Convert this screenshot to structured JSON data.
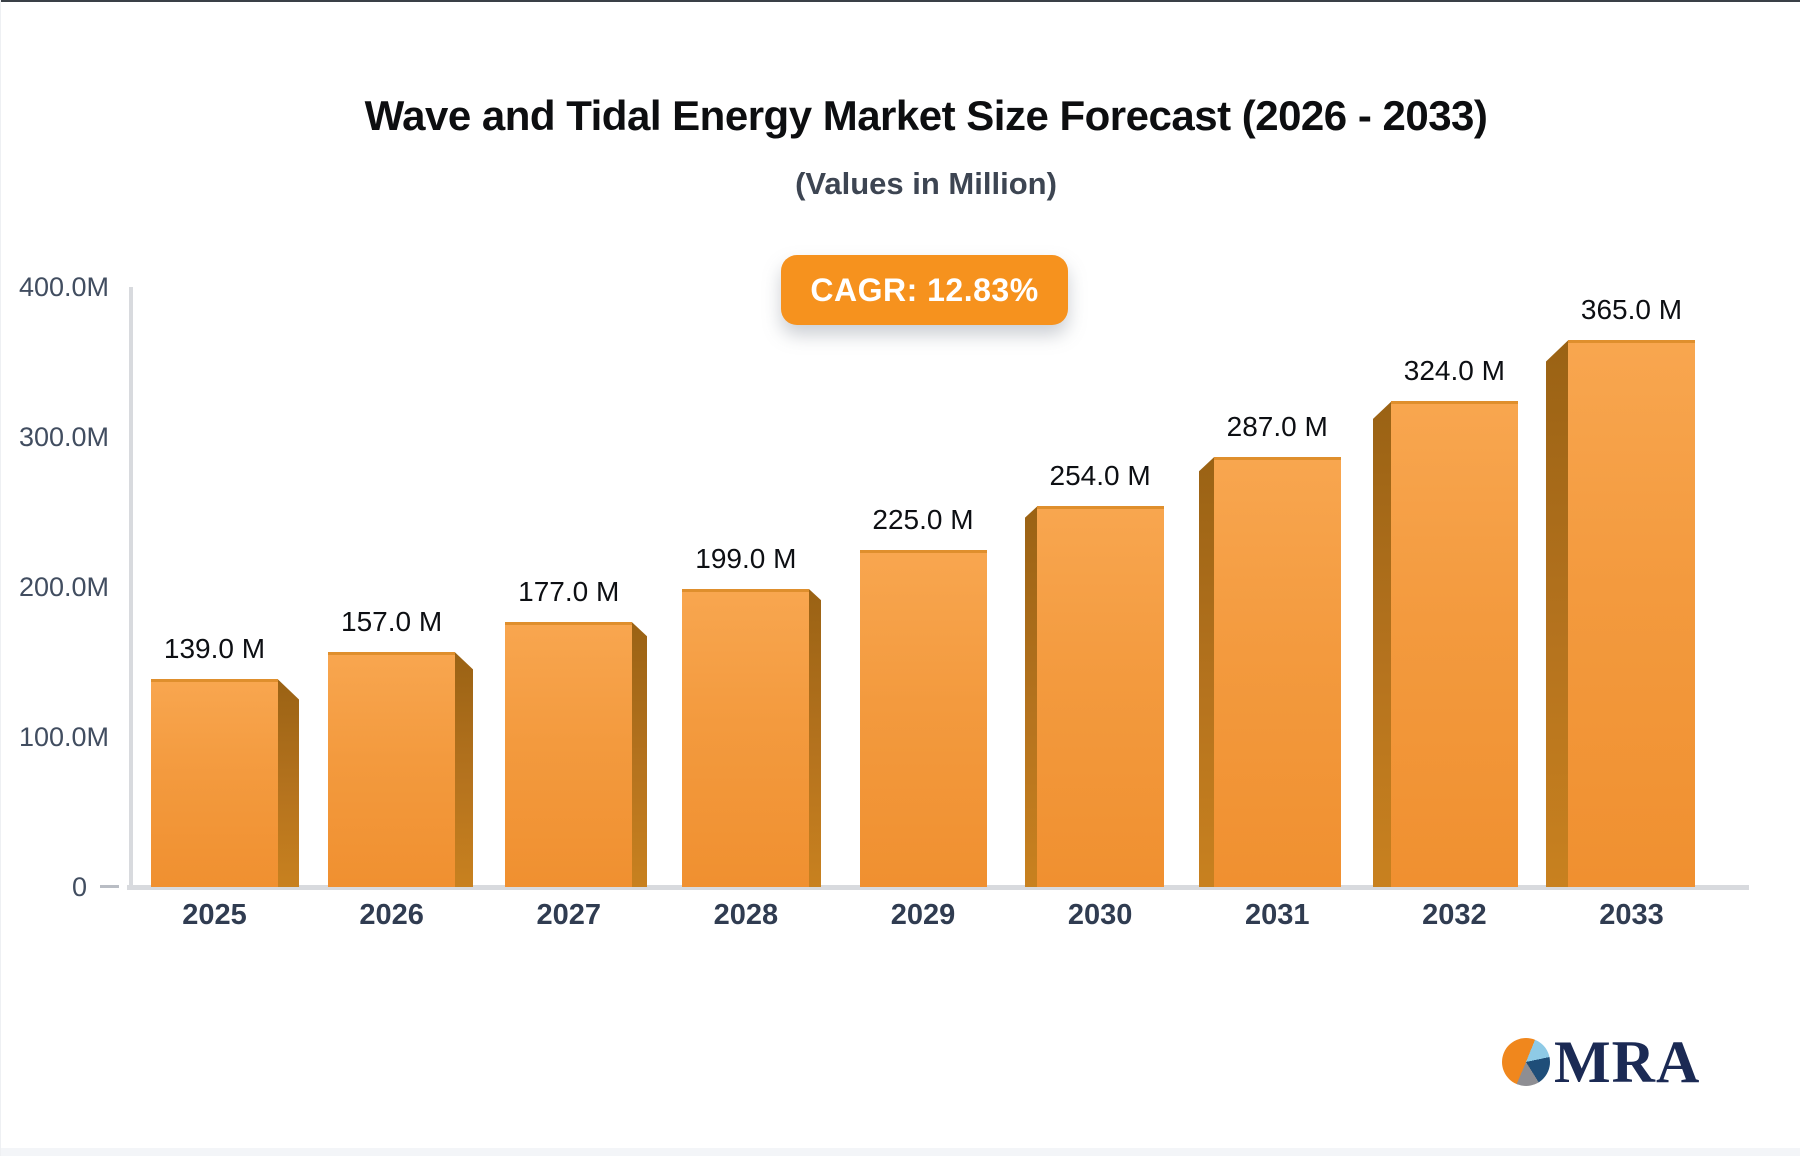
{
  "header": {
    "title": "Wave and Tidal Energy Market Size Forecast (2026 - 2033)",
    "subtitle": "(Values in Million)",
    "cagr_badge": "CAGR: 12.83%"
  },
  "chart_data": {
    "type": "bar",
    "title": "Wave and Tidal Energy Market Size Forecast (2026 - 2033)",
    "subtitle": "(Values in Million)",
    "unit": "Million",
    "cagr_percent": 12.83,
    "categories": [
      "2025",
      "2026",
      "2027",
      "2028",
      "2029",
      "2030",
      "2031",
      "2032",
      "2033"
    ],
    "values": [
      139,
      157,
      177,
      199,
      225,
      254,
      287,
      324,
      365
    ],
    "value_labels": [
      "139.0 M",
      "157.0 M",
      "177.0 M",
      "199.0 M",
      "225.0 M",
      "254.0 M",
      "287.0 M",
      "324.0 M",
      "365.0 M"
    ],
    "y_ticks": [
      {
        "value": 400,
        "label": "400.0M"
      },
      {
        "value": 300,
        "label": "300.0M"
      },
      {
        "value": 200,
        "label": "200.0M"
      },
      {
        "value": 100,
        "label": "100.0M"
      },
      {
        "value": 0,
        "label": "0"
      }
    ],
    "ylim": [
      0,
      400
    ],
    "grid": false,
    "legend": false,
    "bar_style": "3d",
    "colors": {
      "face_top": "#f8a64f",
      "face_bottom": "#f09030",
      "face_edge": "#df8f2d",
      "side_dark": "#9a6214",
      "side_light": "#c8811f",
      "axis": "#d8dade",
      "badge": "#f6921e"
    }
  },
  "branding": {
    "logo_text": "MRA",
    "logo_colors": {
      "orange": "#f0871d",
      "light_blue": "#8ecae6",
      "navy": "#1f4e79",
      "gray": "#8e8e93",
      "text": "#1b2a54"
    }
  }
}
